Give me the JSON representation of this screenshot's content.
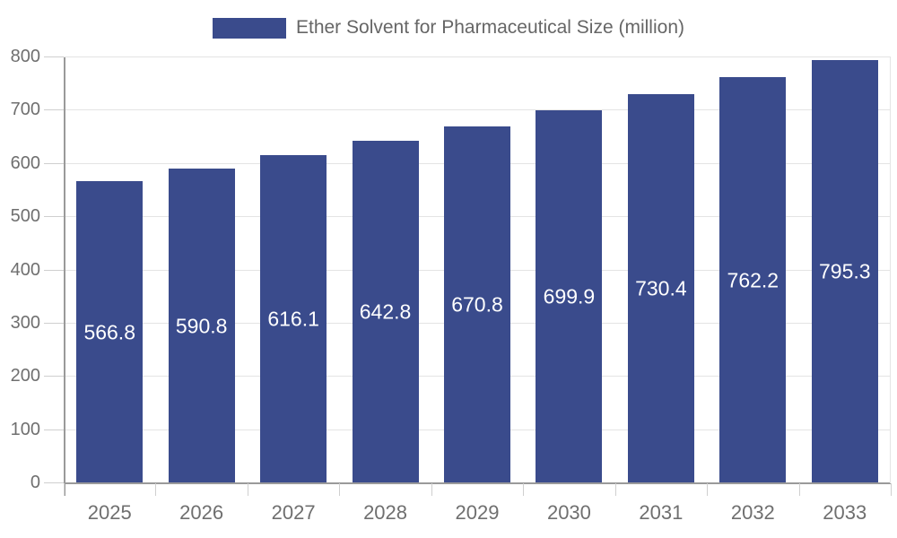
{
  "legend": {
    "series_label": "Ether Solvent for Pharmaceutical Size (million)"
  },
  "chart_data": {
    "type": "bar",
    "title": "",
    "xlabel": "",
    "ylabel": "",
    "categories": [
      "2025",
      "2026",
      "2027",
      "2028",
      "2029",
      "2030",
      "2031",
      "2032",
      "2033"
    ],
    "series": [
      {
        "name": "Ether Solvent for Pharmaceutical Size (million)",
        "values": [
          566.8,
          590.8,
          616.1,
          642.8,
          670.8,
          699.9,
          730.4,
          762.2,
          795.3
        ]
      }
    ],
    "value_labels": [
      "566.8",
      "590.8",
      "616.1",
      "642.8",
      "670.8",
      "699.9",
      "730.4",
      "762.2",
      "795.3"
    ],
    "ylim": [
      0,
      800
    ],
    "yticks": [
      0,
      100,
      200,
      300,
      400,
      500,
      600,
      700,
      800
    ],
    "grid": true,
    "legend_position": "top",
    "value_label_position": "inside-center",
    "colors": {
      "bar": "#3A4B8C",
      "value_label": "#FFFFFF",
      "gridline": "#E4E4E4",
      "axis_line": "#9A9A9A",
      "tick_mark": "#CFCFCF",
      "tick_label": "#6F6F6F",
      "legend_text": "#666666",
      "background": "#FFFFFF"
    }
  }
}
